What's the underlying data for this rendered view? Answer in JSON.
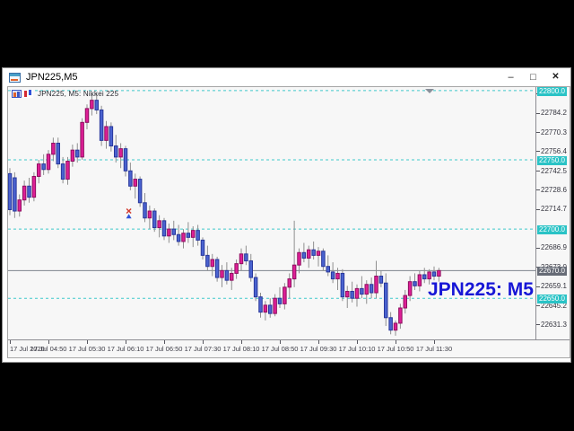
{
  "window": {
    "title": "JPN225,M5",
    "controls": {
      "minimize": "–",
      "maximize": "□",
      "close": "✕"
    }
  },
  "chart_header": {
    "label": "JPN225, M5:  Nikkei 225"
  },
  "watermark": "JPN225: M5",
  "colors": {
    "background": "#f7f7f7",
    "bull": "#de1f96",
    "bull_border": "#8f0f60",
    "bear": "#4a63d0",
    "bear_border": "#28379b",
    "wick": "#8f8f8f",
    "level_line": "#3fc9cb",
    "level_badge_bg": "#2ac3c6",
    "current_badge_bg": "#666b76",
    "current_line": "#7e848c",
    "watermark_text": "#1716d6",
    "marker_red": "#d23b2f",
    "marker_blue": "#2e52d8"
  },
  "chart_data": {
    "type": "candlestick",
    "symbol": "JPN225",
    "timeframe": "M5",
    "instrument": "Nikkei 225",
    "ylim": [
      22620.3,
      22802.5
    ],
    "price_ticks": [
      {
        "label": "22798.1",
        "value": 22798.1
      },
      {
        "label": "22784.2",
        "value": 22784.2
      },
      {
        "label": "22770.3",
        "value": 22770.3
      },
      {
        "label": "22756.4",
        "value": 22756.4
      },
      {
        "label": "22742.5",
        "value": 22742.5
      },
      {
        "label": "22728.6",
        "value": 22728.6
      },
      {
        "label": "22714.7",
        "value": 22714.7
      },
      {
        "label": "22686.9",
        "value": 22686.9
      },
      {
        "label": "22673.0",
        "value": 22673.0
      },
      {
        "label": "22659.1",
        "value": 22659.1
      },
      {
        "label": "22645.2",
        "value": 22645.2
      },
      {
        "label": "22631.3",
        "value": 22631.3
      }
    ],
    "levels": [
      {
        "label": "22800.0",
        "value": 22800.0
      },
      {
        "label": "22750.0",
        "value": 22750.0
      },
      {
        "label": "22700.0",
        "value": 22700.0
      },
      {
        "label": "22650.0",
        "value": 22650.0
      }
    ],
    "current_price": {
      "label": "22670.0",
      "value": 22670.0
    },
    "time_labels": [
      {
        "label": "17 Jul 2020",
        "candle_index": 0
      },
      {
        "label": "17 Jul 04:50",
        "candle_index": 8
      },
      {
        "label": "17 Jul 05:30",
        "candle_index": 16
      },
      {
        "label": "17 Jul 06:10",
        "candle_index": 24
      },
      {
        "label": "17 Jul 06:50",
        "candle_index": 32
      },
      {
        "label": "17 Jul 07:30",
        "candle_index": 40
      },
      {
        "label": "17 Jul 08:10",
        "candle_index": 48
      },
      {
        "label": "17 Jul 08:50",
        "candle_index": 56
      },
      {
        "label": "17 Jul 09:30",
        "candle_index": 64
      },
      {
        "label": "17 Jul 10:10",
        "candle_index": 72
      },
      {
        "label": "17 Jul 10:50",
        "candle_index": 80
      },
      {
        "label": "17 Jul 11:30",
        "candle_index": 88
      }
    ],
    "candles": [
      [
        22740,
        22744,
        22710,
        22714
      ],
      [
        22737,
        22741,
        22708,
        22713
      ],
      [
        22713,
        22725,
        22709,
        22721
      ],
      [
        22721,
        22735,
        22717,
        22731
      ],
      [
        22731,
        22737,
        22719,
        22723
      ],
      [
        22723,
        22741,
        22720,
        22738
      ],
      [
        22738,
        22750,
        22733,
        22747
      ],
      [
        22747,
        22754,
        22739,
        22743
      ],
      [
        22743,
        22757,
        22740,
        22754
      ],
      [
        22754,
        22766,
        22749,
        22762
      ],
      [
        22762,
        22766,
        22744,
        22747
      ],
      [
        22747,
        22752,
        22733,
        22736
      ],
      [
        22736,
        22752,
        22732,
        22749
      ],
      [
        22749,
        22761,
        22745,
        22757
      ],
      [
        22757,
        22762,
        22748,
        22752
      ],
      [
        22752,
        22780,
        22750,
        22777
      ],
      [
        22777,
        22790,
        22772,
        22787
      ],
      [
        22787,
        22797,
        22782,
        22793
      ],
      [
        22793,
        22798,
        22783,
        22786
      ],
      [
        22786,
        22789,
        22760,
        22764
      ],
      [
        22764,
        22778,
        22758,
        22774
      ],
      [
        22774,
        22777,
        22756,
        22760
      ],
      [
        22760,
        22768,
        22748,
        22752
      ],
      [
        22752,
        22762,
        22744,
        22758
      ],
      [
        22758,
        22760,
        22738,
        22742
      ],
      [
        22742,
        22748,
        22728,
        22731
      ],
      [
        22731,
        22740,
        22722,
        22736
      ],
      [
        22736,
        22738,
        22716,
        22719
      ],
      [
        22719,
        22726,
        22705,
        22708
      ],
      [
        22708,
        22717,
        22700,
        22713
      ],
      [
        22713,
        22715,
        22698,
        22701
      ],
      [
        22701,
        22710,
        22694,
        22706
      ],
      [
        22706,
        22708,
        22692,
        22695
      ],
      [
        22695,
        22704,
        22690,
        22700
      ],
      [
        22700,
        22706,
        22692,
        22696
      ],
      [
        22696,
        22703,
        22688,
        22691
      ],
      [
        22691,
        22700,
        22686,
        22697
      ],
      [
        22697,
        22705,
        22690,
        22694
      ],
      [
        22694,
        22702,
        22687,
        22699
      ],
      [
        22699,
        22703,
        22688,
        22692
      ],
      [
        22692,
        22694,
        22678,
        22681
      ],
      [
        22681,
        22688,
        22670,
        22673
      ],
      [
        22673,
        22682,
        22666,
        22678
      ],
      [
        22678,
        22680,
        22662,
        22665
      ],
      [
        22665,
        22674,
        22658,
        22670
      ],
      [
        22670,
        22676,
        22660,
        22663
      ],
      [
        22663,
        22672,
        22656,
        22668
      ],
      [
        22668,
        22678,
        22664,
        22675
      ],
      [
        22675,
        22686,
        22670,
        22682
      ],
      [
        22682,
        22688,
        22674,
        22677
      ],
      [
        22677,
        22682,
        22662,
        22665
      ],
      [
        22665,
        22668,
        22648,
        22651
      ],
      [
        22651,
        22654,
        22636,
        22640
      ],
      [
        22640,
        22648,
        22634,
        22645
      ],
      [
        22645,
        22650,
        22636,
        22639
      ],
      [
        22639,
        22653,
        22637,
        22650
      ],
      [
        22650,
        22658,
        22643,
        22646
      ],
      [
        22646,
        22661,
        22642,
        22658
      ],
      [
        22658,
        22668,
        22650,
        22664
      ],
      [
        22664,
        22706,
        22658,
        22674
      ],
      [
        22674,
        22686,
        22668,
        22683
      ],
      [
        22683,
        22690,
        22676,
        22679
      ],
      [
        22679,
        22688,
        22672,
        22685
      ],
      [
        22685,
        22691,
        22678,
        22681
      ],
      [
        22681,
        22687,
        22673,
        22684
      ],
      [
        22684,
        22686,
        22670,
        22673
      ],
      [
        22673,
        22681,
        22666,
        22669
      ],
      [
        22669,
        22676,
        22661,
        22664
      ],
      [
        22664,
        22672,
        22656,
        22668
      ],
      [
        22668,
        22671,
        22648,
        22651
      ],
      [
        22651,
        22659,
        22643,
        22655
      ],
      [
        22655,
        22662,
        22647,
        22650
      ],
      [
        22650,
        22660,
        22644,
        22657
      ],
      [
        22657,
        22666,
        22650,
        22653
      ],
      [
        22653,
        22663,
        22646,
        22660
      ],
      [
        22660,
        22665,
        22650,
        22654
      ],
      [
        22654,
        22677,
        22650,
        22666
      ],
      [
        22666,
        22670,
        22658,
        22661
      ],
      [
        22661,
        22668,
        22630,
        22636
      ],
      [
        22636,
        22640,
        22624,
        22627
      ],
      [
        22627,
        22634,
        22623,
        22632
      ],
      [
        22632,
        22646,
        22628,
        22643
      ],
      [
        22643,
        22656,
        22639,
        22652
      ],
      [
        22652,
        22666,
        22648,
        22662
      ],
      [
        22662,
        22668,
        22656,
        22659
      ],
      [
        22659,
        22670,
        22655,
        22667
      ],
      [
        22667,
        22672,
        22661,
        22664
      ],
      [
        22664,
        22671,
        22660,
        22669
      ],
      [
        22669,
        22673,
        22663,
        22666
      ],
      [
        22666,
        22672,
        22662,
        22670
      ]
    ],
    "trade_markers": [
      {
        "candle_index": 23,
        "price": 22713,
        "shape": "cross",
        "color": "#d23b2f"
      },
      {
        "candle_index": 23,
        "price": 22709,
        "shape": "triangle-up",
        "color": "#2e52d8"
      }
    ]
  }
}
